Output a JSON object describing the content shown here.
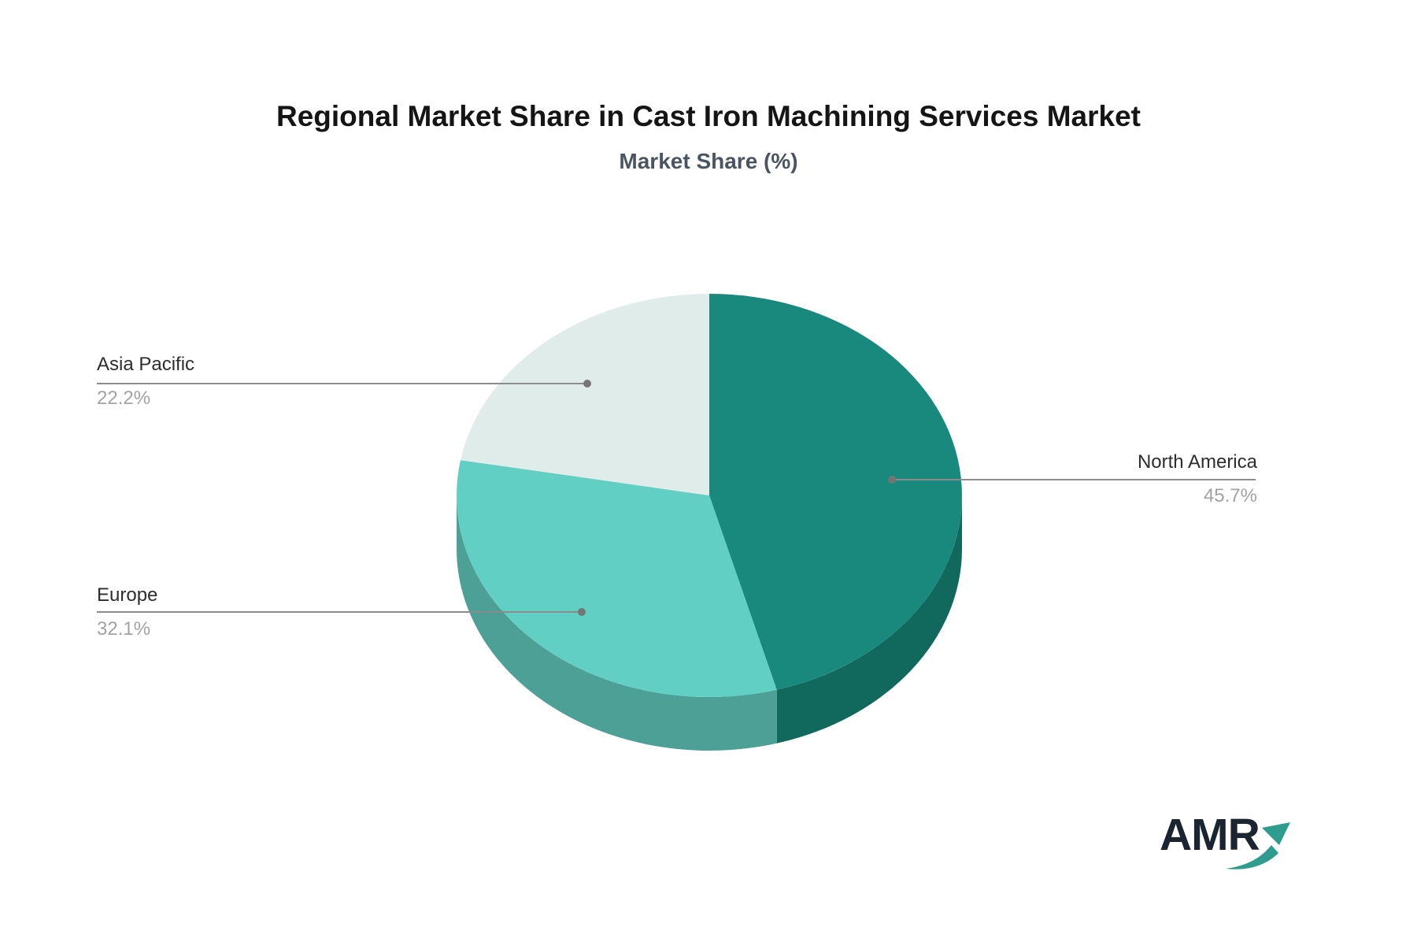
{
  "title": "Regional Market Share in Cast Iron Machining Services Market",
  "subtitle": "Market Share (%)",
  "logo": {
    "text": "AMR"
  },
  "chart_data": {
    "type": "pie",
    "style": "3d",
    "title": "Regional Market Share in Cast Iron Machining Services Market",
    "subtitle": "Market Share (%)",
    "unit": "%",
    "total": 100,
    "start_angle_deg": 0,
    "direction": "clockwise",
    "legend_position": "none",
    "slices": [
      {
        "label": "North America",
        "value": 45.7,
        "value_label": "45.7%",
        "color": "#1a897d",
        "side_color": "#11695e"
      },
      {
        "label": "Europe",
        "value": 32.1,
        "value_label": "32.1%",
        "color": "#61cfc3",
        "side_color": "#4ca095"
      },
      {
        "label": "Asia Pacific",
        "value": 22.2,
        "value_label": "22.2%",
        "color": "#dfecea",
        "side_color": "#c2d6d3"
      }
    ],
    "label_name_color": "#2d2d2d",
    "label_value_color": "#a2a2a2",
    "leader_line_color": "#8c8c8c",
    "leader_dot_color": "#757575"
  }
}
